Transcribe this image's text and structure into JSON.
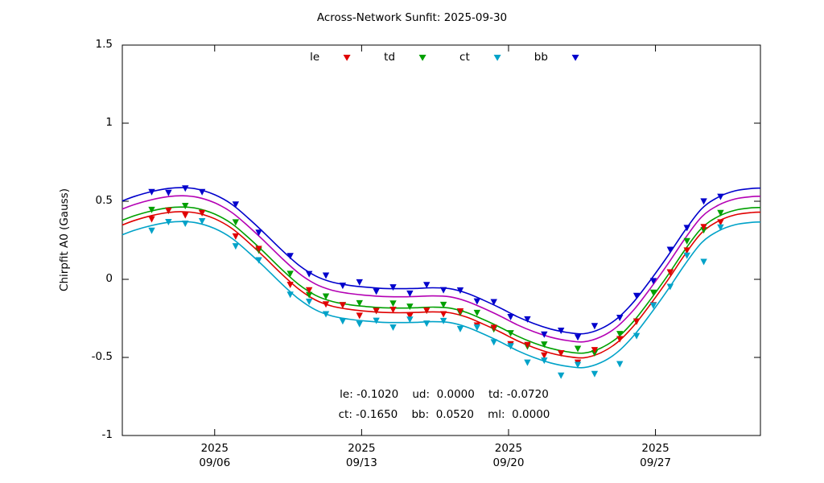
{
  "chart_data": {
    "type": "line",
    "title": "Across-Network Sunfit: 2025-09-30",
    "ylabel": "Chirpfit A0 (Gauss)",
    "ylim": [
      -1,
      1.5
    ],
    "xlim_days": [
      1.6,
      32.0
    ],
    "grid": false,
    "legend_position": "top-center-inside",
    "yticks": [
      {
        "value": -1,
        "label": "-1"
      },
      {
        "value": -0.5,
        "label": "-0.5"
      },
      {
        "value": 0,
        "label": "0"
      },
      {
        "value": 0.5,
        "label": "0.5"
      },
      {
        "value": 1,
        "label": "1"
      },
      {
        "value": 1.5,
        "label": "1.5"
      }
    ],
    "xticks": [
      {
        "day": 6,
        "year": "2025",
        "date": "09/06"
      },
      {
        "day": 13,
        "year": "2025",
        "date": "09/13"
      },
      {
        "day": 20,
        "year": "2025",
        "date": "09/20"
      },
      {
        "day": 27,
        "year": "2025",
        "date": "09/27"
      }
    ],
    "legend": [
      {
        "name": "le",
        "color": "#e00000"
      },
      {
        "name": "td",
        "color": "#00a000"
      },
      {
        "name": "ct",
        "color": "#00a2c8"
      },
      {
        "name": "bb",
        "color": "#0000cc"
      }
    ],
    "annotations": [
      "le: -0.1020    ud:  0.0000    td: -0.0720",
      "ct: -0.1650    bb:  0.0520    ml:  0.0000"
    ],
    "fit_values": {
      "le": -0.102,
      "ud": 0.0,
      "td": -0.072,
      "ct": -0.165,
      "bb": 0.052,
      "ml": 0.0
    },
    "base_curve": {
      "days": [
        1.6,
        2.2,
        3.0,
        3.8,
        4.5,
        5.2,
        6.0,
        6.8,
        7.6,
        8.4,
        9.2,
        10.0,
        10.8,
        11.6,
        12.4,
        13.2,
        14.0,
        14.8,
        15.6,
        16.4,
        17.2,
        18.0,
        18.8,
        19.6,
        20.4,
        21.2,
        22.0,
        22.8,
        23.6,
        24.4,
        25.2,
        26.0,
        26.8,
        27.6,
        28.4,
        29.2,
        30.0,
        30.8,
        31.6,
        32.0
      ],
      "values": [
        0.45,
        0.48,
        0.51,
        0.53,
        0.535,
        0.525,
        0.49,
        0.43,
        0.34,
        0.24,
        0.135,
        0.04,
        -0.03,
        -0.07,
        -0.09,
        -0.102,
        -0.11,
        -0.112,
        -0.11,
        -0.106,
        -0.112,
        -0.14,
        -0.185,
        -0.235,
        -0.29,
        -0.335,
        -0.37,
        -0.392,
        -0.4,
        -0.368,
        -0.3,
        -0.19,
        -0.05,
        0.1,
        0.26,
        0.4,
        0.475,
        0.515,
        0.53,
        0.532
      ]
    },
    "series": [
      {
        "name": "bb",
        "color": "#0000cc",
        "offset": 0.052,
        "has_marker": true
      },
      {
        "name": "ml",
        "color": "#b400b4",
        "offset": 0.0,
        "has_marker": false
      },
      {
        "name": "td",
        "color": "#00a000",
        "offset": -0.072,
        "has_marker": true
      },
      {
        "name": "le",
        "color": "#e00000",
        "offset": -0.102,
        "has_marker": true
      },
      {
        "name": "ct",
        "color": "#00a2c8",
        "offset": -0.165,
        "has_marker": true
      }
    ],
    "scatter_days": [
      3.0,
      3.8,
      4.6,
      5.4,
      7.0,
      8.1,
      9.6,
      10.5,
      11.3,
      12.1,
      12.9,
      13.7,
      14.5,
      15.3,
      16.1,
      16.9,
      17.7,
      18.5,
      19.3,
      20.1,
      20.9,
      21.7,
      22.5,
      23.3,
      24.1,
      25.3,
      26.1,
      26.9,
      27.7,
      28.5,
      29.3,
      30.1
    ],
    "scatter": {
      "le": [
        0.388,
        0.443,
        0.413,
        0.428,
        0.278,
        0.198,
        -0.032,
        -0.067,
        -0.157,
        -0.162,
        -0.23,
        -0.199,
        -0.192,
        -0.232,
        -0.197,
        -0.22,
        -0.202,
        -0.292,
        -0.307,
        -0.412,
        -0.417,
        -0.484,
        -0.47,
        -0.53,
        -0.45,
        -0.38,
        -0.267,
        -0.162,
        0.048,
        0.188,
        0.338,
        0.368
      ],
      "td": [
        0.448,
        0.443,
        0.473,
        0.428,
        0.368,
        0.188,
        0.038,
        -0.097,
        -0.107,
        -0.162,
        -0.15,
        -0.199,
        -0.152,
        -0.172,
        -0.197,
        -0.16,
        -0.212,
        -0.212,
        -0.317,
        -0.342,
        -0.427,
        -0.414,
        -0.47,
        -0.442,
        -0.47,
        -0.347,
        -0.267,
        -0.082,
        0.048,
        0.248,
        0.318,
        0.428
      ],
      "ct": [
        0.315,
        0.37,
        0.36,
        0.375,
        0.215,
        0.125,
        -0.095,
        -0.14,
        -0.22,
        -0.265,
        -0.283,
        -0.262,
        -0.305,
        -0.255,
        -0.28,
        -0.263,
        -0.315,
        -0.305,
        -0.4,
        -0.425,
        -0.53,
        -0.517,
        -0.613,
        -0.545,
        -0.603,
        -0.54,
        -0.36,
        -0.165,
        -0.045,
        0.155,
        0.115,
        0.335
      ],
      "bb": [
        0.562,
        0.557,
        0.585,
        0.562,
        0.482,
        0.302,
        0.152,
        0.037,
        0.027,
        -0.038,
        -0.016,
        -0.075,
        -0.048,
        -0.088,
        -0.033,
        -0.066,
        -0.068,
        -0.138,
        -0.143,
        -0.238,
        -0.253,
        -0.35,
        -0.326,
        -0.368,
        -0.296,
        -0.243,
        -0.103,
        -0.008,
        0.192,
        0.332,
        0.502,
        0.532
      ]
    }
  }
}
